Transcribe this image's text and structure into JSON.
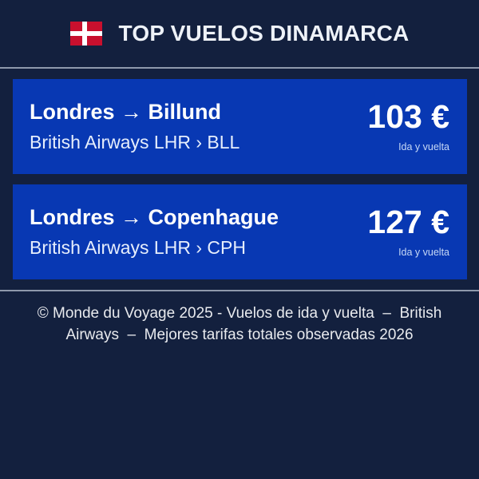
{
  "header": {
    "flag_icon": "denmark-flag",
    "title": "TOP VUELOS DINAMARCA"
  },
  "cards": [
    {
      "route": "Londres → Billund",
      "details": "British Airways LHR › BLL",
      "price": "103 €",
      "price_note": "Ida y vuelta"
    },
    {
      "route": "Londres → Copenhague",
      "details": "British Airways LHR › CPH",
      "price": "127 €",
      "price_note": "Ida y vuelta"
    }
  ],
  "footer": {
    "text": "© Monde du Voyage 2025 - Vuelos de ida y vuelta  –  British\nAirways  –  Mejores tarifas totales observadas 2026"
  },
  "colors": {
    "bg-navy": "#13203e",
    "card-blue": "#0838b3",
    "flag-red": "#c8102e",
    "divider": "#8e99ac",
    "title-white": "#eef2f8",
    "subtitle-blue-white": "#e6eefc",
    "note-blue": "#c6d8f6",
    "footer-grey": "#e8eaee"
  }
}
